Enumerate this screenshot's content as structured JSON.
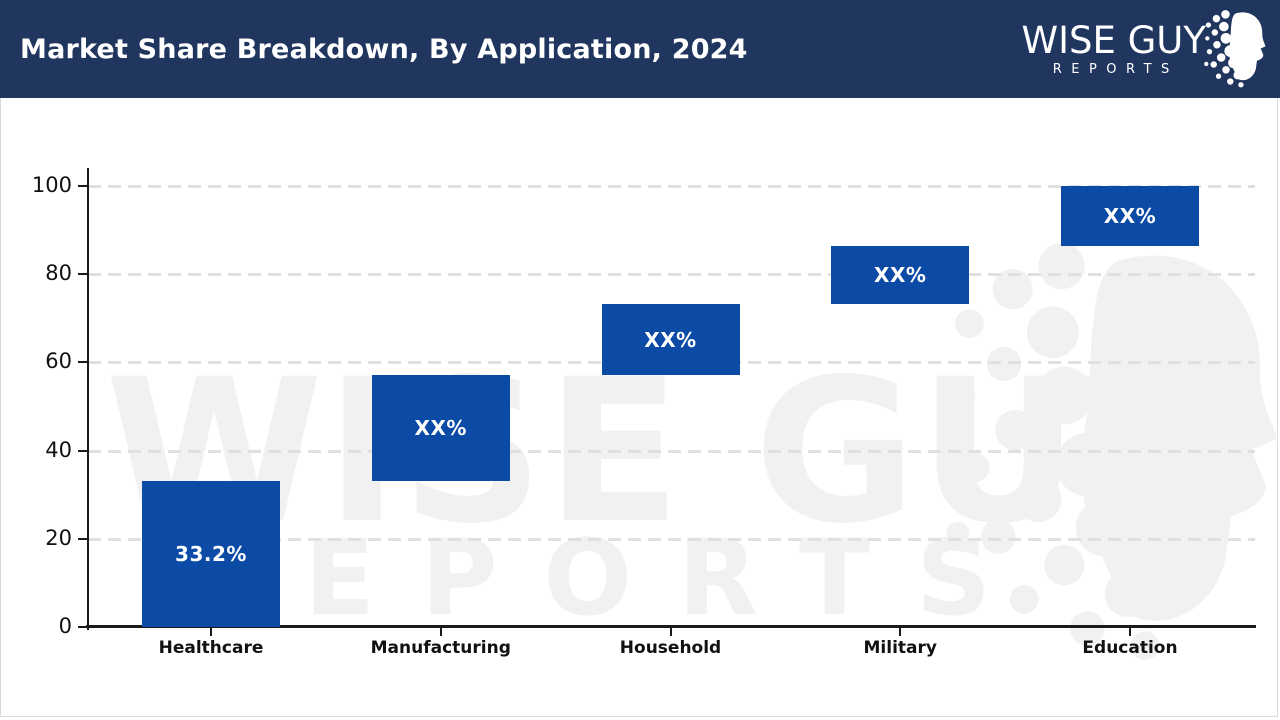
{
  "colors": {
    "header_bg": "#21365f",
    "bar_blue": "#0b4aa5",
    "axis": "#1a1a1a",
    "gridline": "#e0e0e0",
    "watermark": "#f1f1f1"
  },
  "header": {
    "title": "Market Share Breakdown, By Application, 2024",
    "logo": {
      "line1": "WISE GUY",
      "line2": "REPORTS",
      "icon": "wiseguy-head-icon"
    }
  },
  "watermark": {
    "line1": "WISE GUY",
    "line2": "REPORTS",
    "icon": "wiseguy-head-icon"
  },
  "chart_data": {
    "type": "bar",
    "subtype": "waterfall",
    "title": "Market Share Breakdown, By Application, 2024",
    "categories": [
      "Healthcare",
      "Manufacturing",
      "Household",
      "Military",
      "Education"
    ],
    "bars": [
      {
        "category": "Healthcare",
        "start": 0,
        "end": 33.2,
        "label": "33.2%"
      },
      {
        "category": "Manufacturing",
        "start": 33.2,
        "end": 57.1,
        "label": "XX%"
      },
      {
        "category": "Household",
        "start": 57.1,
        "end": 73.2,
        "label": "XX%"
      },
      {
        "category": "Military",
        "start": 73.2,
        "end": 86.4,
        "label": "XX%"
      },
      {
        "category": "Education",
        "start": 86.4,
        "end": 100,
        "label": "XX%"
      }
    ],
    "xlabel": "",
    "ylabel": "",
    "yticks": [
      0,
      20,
      40,
      60,
      80,
      100
    ],
    "ylim": [
      0,
      105
    ],
    "grid": "horizontal-dashed",
    "legend": "none",
    "bar_value_labels_position": "center"
  }
}
